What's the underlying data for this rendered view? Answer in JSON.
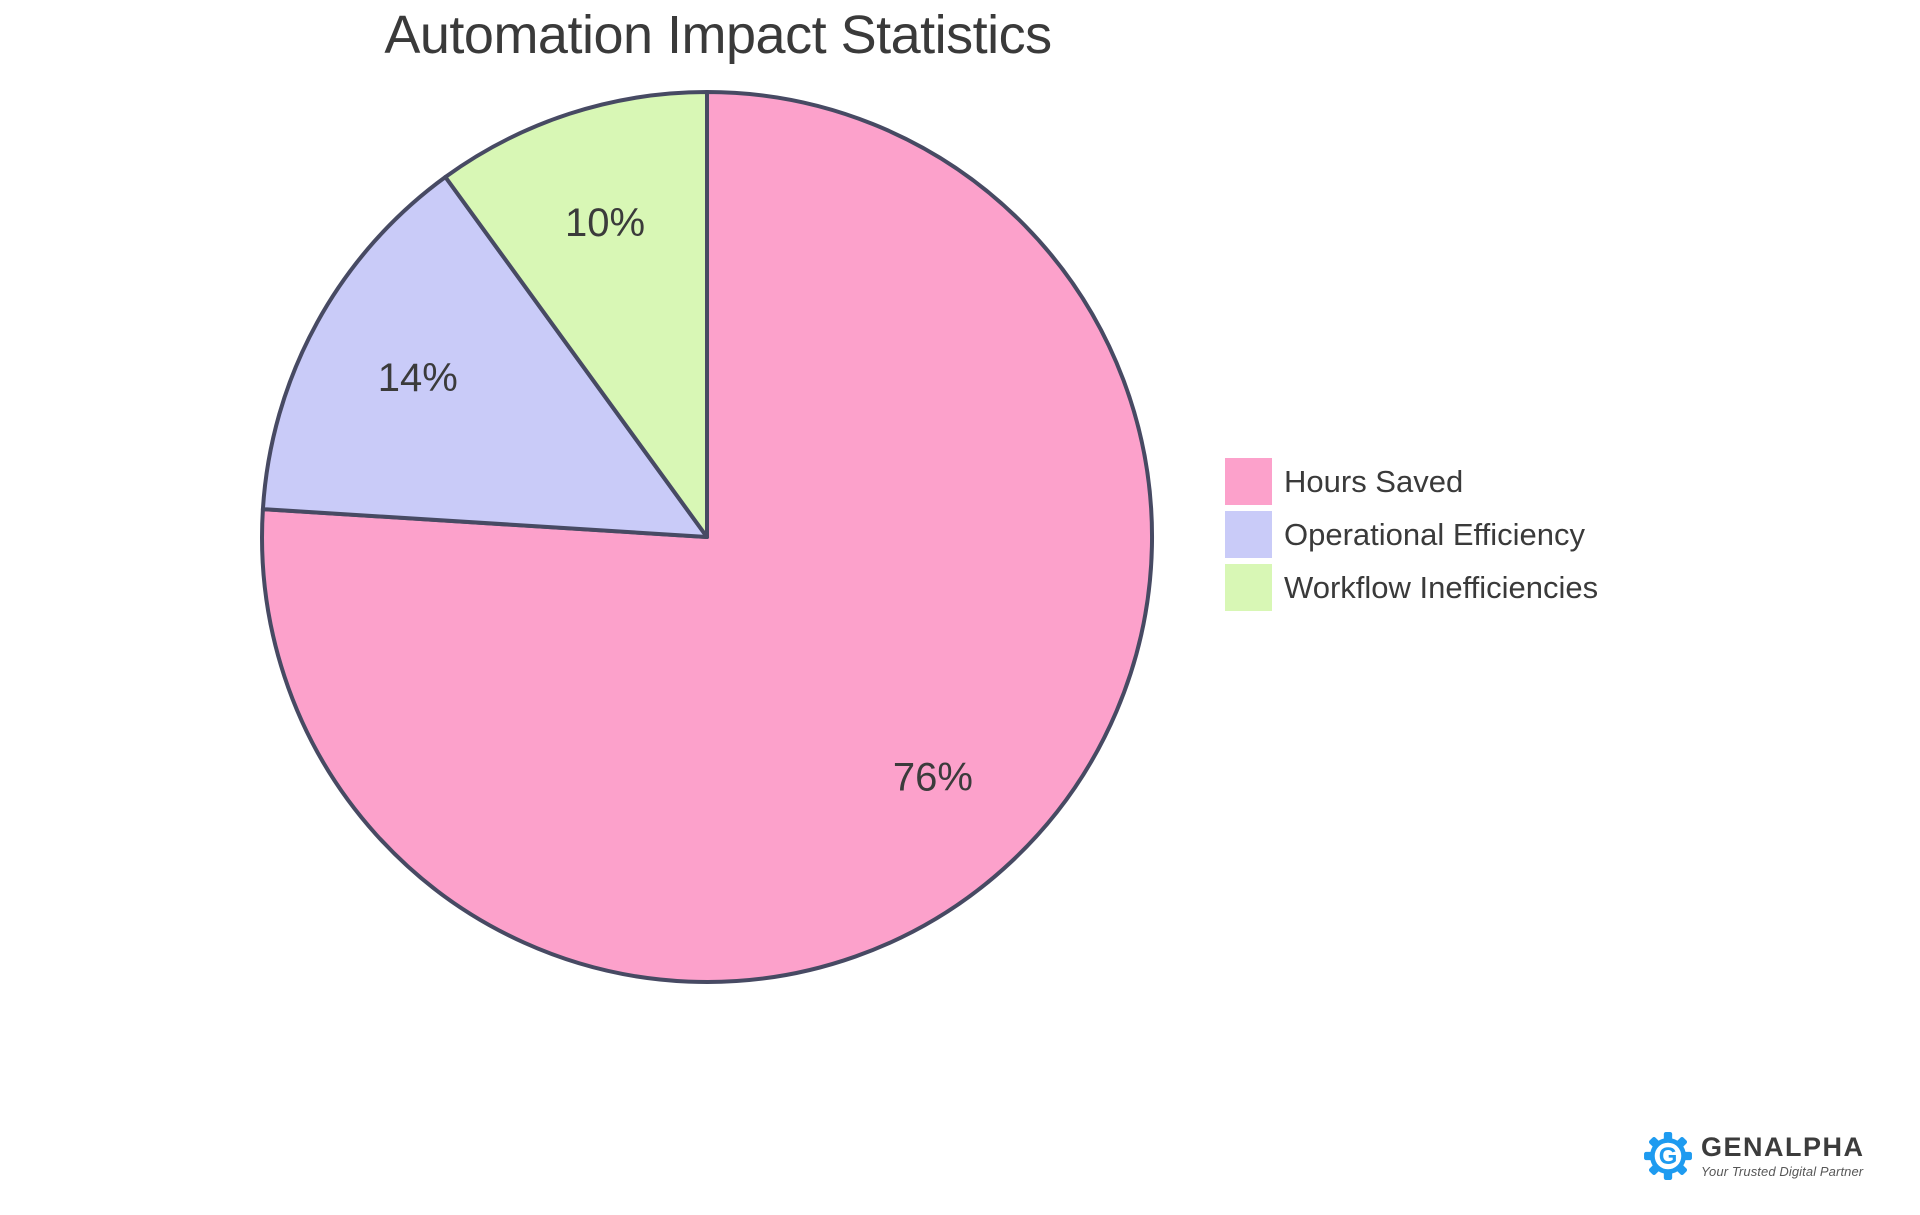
{
  "chart_data": {
    "type": "pie",
    "title": "Automation Impact Statistics",
    "legend_position": "right",
    "start_angle_deg": 0,
    "direction": "clockwise",
    "stroke_color": "#474a63",
    "label_color": "#3b3b3b",
    "slices": [
      {
        "name": "Hours Saved",
        "value": 76,
        "label": "76%",
        "color": "#fca1cb"
      },
      {
        "name": "Operational Efficiency",
        "value": 14,
        "label": "14%",
        "color": "#c9cbf8"
      },
      {
        "name": "Workflow Inefficiencies",
        "value": 10,
        "label": "10%",
        "color": "#d8f7b5"
      }
    ]
  },
  "branding": {
    "name": "GENALPHA",
    "tagline": "Your Trusted Digital Partner",
    "logo_color": "#1e9bf0"
  }
}
